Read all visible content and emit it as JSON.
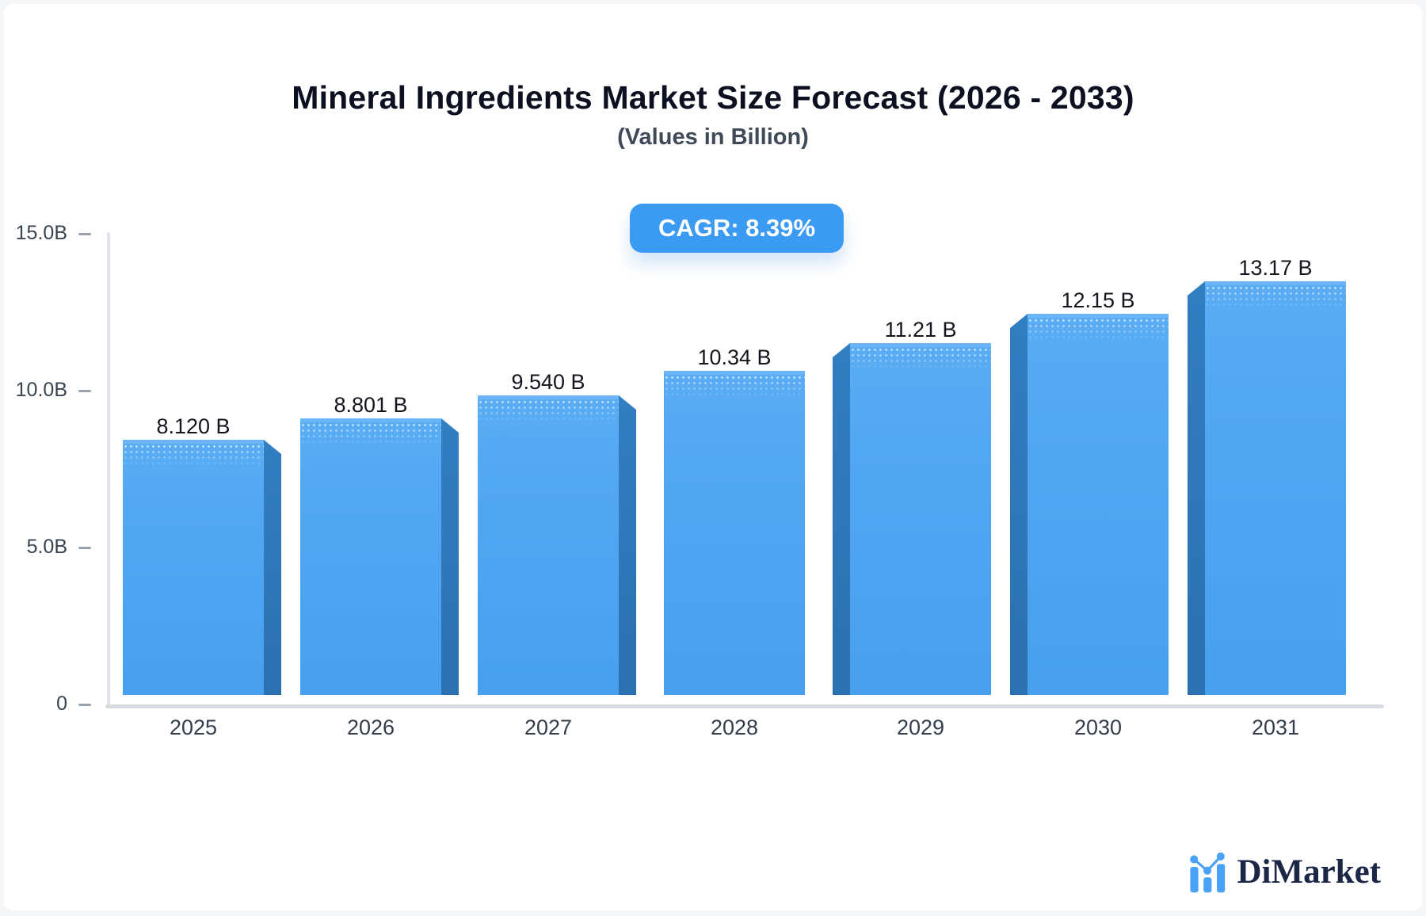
{
  "chart": {
    "title": "Mineral Ingredients Market Size Forecast (2026 - 2033)",
    "subtitle": "(Values in Billion)",
    "cagr_label": "CAGR: 8.39%"
  },
  "brand": {
    "name": "DiMarket"
  },
  "chart_data": {
    "type": "bar",
    "title": "Mineral Ingredients Market Size Forecast (2026 - 2033)",
    "subtitle": "(Values in Billion)",
    "annotation": "CAGR: 8.39%",
    "categories": [
      "2025",
      "2026",
      "2027",
      "2028",
      "2029",
      "2030",
      "2031"
    ],
    "values": [
      8.12,
      8.801,
      9.54,
      10.34,
      11.21,
      12.15,
      13.17
    ],
    "value_labels": [
      "8.120 B",
      "8.801 B",
      "9.540 B",
      "10.34 B",
      "11.21 B",
      "12.15 B",
      "13.17 B"
    ],
    "yticks": [
      {
        "label": "15.0B",
        "value": 15
      },
      {
        "label": "10.0B",
        "value": 10
      },
      {
        "label": "5.0B",
        "value": 5
      },
      {
        "label": "0",
        "value": 0
      }
    ],
    "ylim": [
      0,
      15
    ],
    "grid": false,
    "legend": false,
    "colors": {
      "bar_face_top": "#5aadf4",
      "bar_face_bottom": "#47a0ee",
      "bar_side": "#2e77b9",
      "badge_bg": "#3b9bf3",
      "badge_text": "#ffffff",
      "axis_line": "#dfe3e8",
      "tick_text": "#3a4350",
      "label_text": "#13161d",
      "logo_blue": "#4aa2f6",
      "logo_navy": "#1c2747"
    }
  }
}
